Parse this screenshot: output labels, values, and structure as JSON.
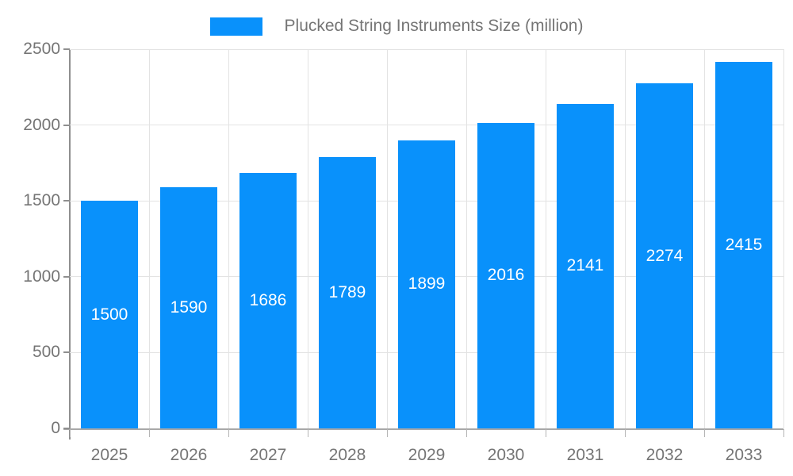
{
  "page": {
    "background_color": "#ffffff"
  },
  "legend": {
    "label": "Plucked String Instruments Size (million)",
    "swatch_color": "#0991FB",
    "text_color": "#757575",
    "position": "top-center"
  },
  "chart_data": {
    "type": "bar",
    "title": "Plucked String Instruments Size (million)",
    "series_name": "Plucked String Instruments Size (million)",
    "categories": [
      "2025",
      "2026",
      "2027",
      "2028",
      "2029",
      "2030",
      "2031",
      "2032",
      "2033"
    ],
    "values": [
      1500,
      1590,
      1686,
      1789,
      1899,
      2016,
      2141,
      2274,
      2415
    ],
    "xlabel": "",
    "ylabel": "",
    "ylim": [
      0,
      2500
    ],
    "yticks": [
      0,
      500,
      1000,
      1500,
      2000,
      2500
    ],
    "grid": true,
    "legend_position": "top",
    "value_labels_position": "centered-inside-bars",
    "bar_color": "#0991FB",
    "value_label_color": "#ffffff",
    "axis_label_color": "#757575",
    "grid_color": "#e3e3e3",
    "axis_line_color": "#8f8f8f"
  }
}
